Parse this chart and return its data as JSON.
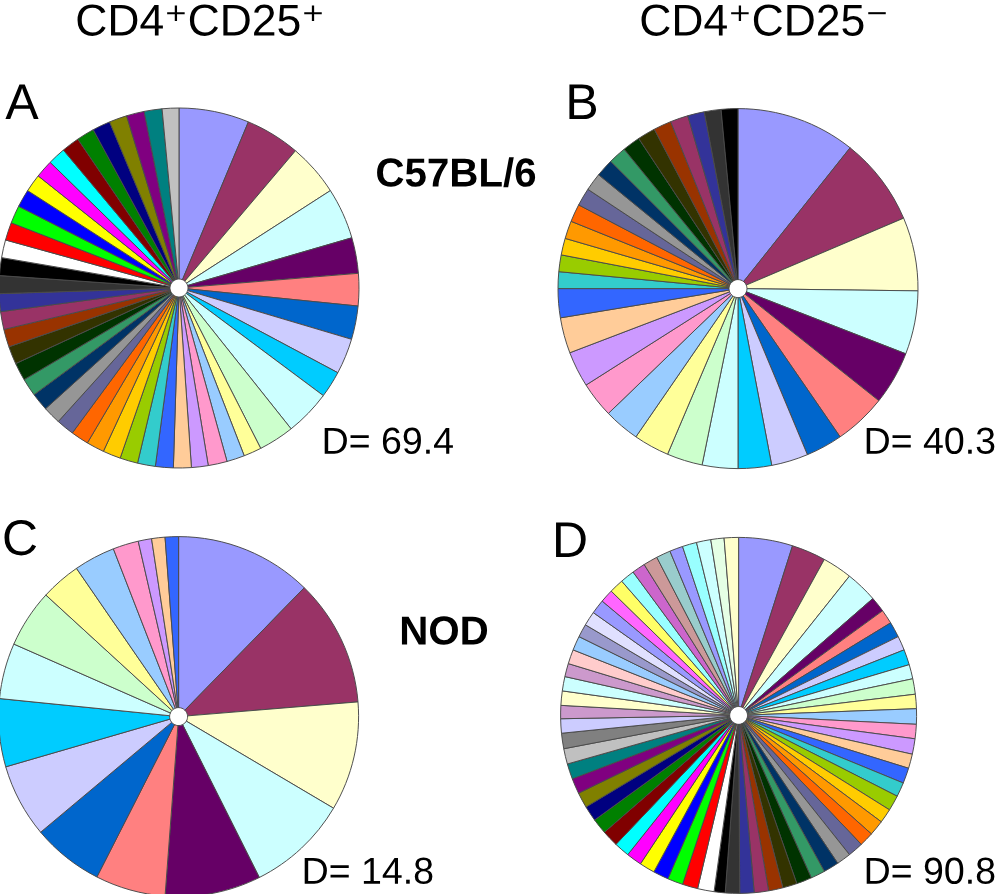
{
  "chart_data": [
    {
      "type": "pie",
      "title": "CD4⁺CD25⁺",
      "annotations": [
        "A",
        "C57BL/6",
        "D= 69.4"
      ],
      "categories": [
        null,
        null,
        null,
        null,
        null,
        null,
        null,
        null,
        null,
        null,
        null,
        null,
        null,
        null,
        null,
        null,
        null,
        null,
        null,
        null,
        null,
        null,
        null,
        null,
        null,
        null,
        null,
        null,
        null,
        null,
        null,
        null,
        null,
        null,
        null,
        null,
        null,
        null,
        null,
        null,
        null,
        null,
        null,
        null,
        null,
        null,
        null
      ],
      "values": [
        6.3,
        4.9,
        4.7,
        4.6,
        3.2,
        2.9,
        3.0,
        3.2,
        2.4,
        4.1,
        3.2,
        1.6,
        1.6,
        1.7,
        1.5,
        1.6,
        1.6,
        1.6,
        1.6,
        1.6,
        1.6,
        1.6,
        1.6,
        1.6,
        1.6,
        1.6,
        1.6,
        1.6,
        1.6,
        1.6,
        1.6,
        1.6,
        1.6,
        1.6,
        1.6,
        1.6,
        1.6,
        1.6,
        1.6,
        1.6,
        1.6,
        1.6,
        1.6,
        1.6,
        1.6,
        1.6,
        1.5
      ],
      "colors": [
        "#9999ff",
        "#993366",
        "#ffffcc",
        "#ccffff",
        "#660066",
        "#ff8080",
        "#0066cc",
        "#ccccff",
        "#00ccff",
        "#ccffff",
        "#ccffcc",
        "#ffff99",
        "#99ccff",
        "#ff99cc",
        "#cc99ff",
        "#ffcc99",
        "#3366ff",
        "#33cccc",
        "#99cc00",
        "#ffcc00",
        "#ff9900",
        "#ff6600",
        "#666699",
        "#969696",
        "#003366",
        "#339966",
        "#003300",
        "#333300",
        "#993300",
        "#993366",
        "#333399",
        "#333333",
        "#000000",
        "#ffffff",
        "#ff0000",
        "#00ff00",
        "#0000ff",
        "#ffff00",
        "#ff00ff",
        "#00ffff",
        "#800000",
        "#008000",
        "#000080",
        "#808000",
        "#800080",
        "#008080",
        "#c0c0c0"
      ]
    },
    {
      "type": "pie",
      "title": "CD4⁺CD25⁻",
      "annotations": [
        "B",
        "D= 40.3"
      ],
      "categories": [
        null,
        null,
        null,
        null,
        null,
        null,
        null,
        null,
        null,
        null,
        null,
        null,
        null,
        null,
        null,
        null,
        null,
        null,
        null,
        null,
        null,
        null,
        null,
        null,
        null,
        null,
        null,
        null,
        null,
        null,
        null,
        null,
        null
      ],
      "values": [
        10.7,
        7.9,
        6.6,
        5.7,
        4.8,
        4.7,
        3.3,
        3.3,
        3.0,
        3.2,
        3.2,
        3.2,
        3.2,
        3.2,
        3.2,
        3.2,
        2.6,
        1.5,
        1.5,
        1.5,
        1.6,
        1.6,
        1.6,
        1.6,
        1.6,
        1.6,
        1.6,
        1.6,
        1.6,
        1.6,
        1.5,
        1.5,
        1.5
      ],
      "colors": [
        "#9999ff",
        "#993366",
        "#ffffcc",
        "#ccffff",
        "#660066",
        "#ff8080",
        "#0066cc",
        "#ccccff",
        "#00ccff",
        "#ccffff",
        "#ccffcc",
        "#ffff99",
        "#99ccff",
        "#ff99cc",
        "#cc99ff",
        "#ffcc99",
        "#3366ff",
        "#33cccc",
        "#99cc00",
        "#ffcc00",
        "#ff9900",
        "#ff6600",
        "#666699",
        "#969696",
        "#003366",
        "#339966",
        "#003300",
        "#333300",
        "#993300",
        "#993366",
        "#333399",
        "#333333",
        "#000000"
      ]
    },
    {
      "type": "pie",
      "annotations": [
        "C",
        "NOD",
        "D= 14.8"
      ],
      "categories": [
        null,
        null,
        null,
        null,
        null,
        null,
        null,
        null,
        null,
        null,
        null,
        null,
        null,
        null,
        null,
        null,
        null
      ],
      "values": [
        12.3,
        11.4,
        9.8,
        9.1,
        8.6,
        6.3,
        6.4,
        6.6,
        6.1,
        5.0,
        5.2,
        3.6,
        3.7,
        2.3,
        1.2,
        1.2,
        1.2
      ],
      "colors": [
        "#9999ff",
        "#993366",
        "#ffffcc",
        "#ccffff",
        "#660066",
        "#ff8080",
        "#0066cc",
        "#ccccff",
        "#00ccff",
        "#ccffff",
        "#ccffcc",
        "#ffff99",
        "#99ccff",
        "#ff99cc",
        "#cc99ff",
        "#ffcc99",
        "#3366ff"
      ]
    },
    {
      "type": "pie",
      "annotations": [
        "D",
        "D= 90.8"
      ],
      "categories": [
        null,
        null,
        null,
        null,
        null,
        null,
        null,
        null,
        null,
        null,
        null,
        null,
        null,
        null,
        null,
        null,
        null,
        null,
        null,
        null,
        null,
        null,
        null,
        null,
        null,
        null,
        null,
        null,
        null,
        null,
        null,
        null,
        null,
        null,
        null,
        null,
        null,
        null,
        null,
        null,
        null,
        null,
        null,
        null,
        null,
        null,
        null,
        null,
        null,
        null,
        null,
        null,
        null,
        null,
        null,
        null,
        null,
        null,
        null,
        null,
        null,
        null,
        null,
        null,
        null,
        null,
        null,
        null,
        null
      ],
      "values": [
        4.9,
        3.1,
        2.7,
        2.9,
        1.4,
        1.3,
        1.4,
        1.3,
        1.4,
        1.3,
        1.4,
        1.3,
        1.4,
        1.3,
        1.4,
        1.3,
        1.4,
        1.3,
        1.4,
        1.3,
        1.4,
        1.3,
        1.4,
        1.3,
        1.4,
        1.3,
        1.4,
        1.3,
        1.3,
        1.3,
        1.3,
        1.3,
        1.0,
        1.5,
        1.4,
        1.4,
        1.4,
        1.4,
        1.4,
        1.4,
        1.5,
        1.4,
        1.4,
        1.4,
        1.4,
        1.4,
        1.4,
        1.4,
        1.3,
        1.2,
        1.3,
        1.3,
        1.2,
        1.3,
        1.3,
        1.2,
        1.3,
        1.3,
        1.2,
        1.3,
        1.3,
        1.2,
        1.3,
        1.3,
        1.2,
        1.3,
        1.3,
        1.2,
        1.3
      ],
      "colors": [
        "#9999ff",
        "#993366",
        "#ffffcc",
        "#ccffff",
        "#660066",
        "#ff8080",
        "#0066cc",
        "#ccccff",
        "#00ccff",
        "#ccffff",
        "#ccffcc",
        "#ffff99",
        "#99ccff",
        "#ff99cc",
        "#cc99ff",
        "#ffcc99",
        "#3366ff",
        "#33cccc",
        "#99cc00",
        "#ffcc00",
        "#ff9900",
        "#ff6600",
        "#666699",
        "#969696",
        "#003366",
        "#339966",
        "#003300",
        "#333300",
        "#993300",
        "#993366",
        "#333399",
        "#333333",
        "#000000",
        "#ffffff",
        "#ff0000",
        "#00ff00",
        "#0000ff",
        "#ffff00",
        "#ff00ff",
        "#00ffff",
        "#800000",
        "#008000",
        "#000080",
        "#808000",
        "#800080",
        "#008080",
        "#c0c0c0",
        "#808080",
        "#ccccff",
        "#cc99cc",
        "#ffffcc",
        "#ccffff",
        "#cc99cc",
        "#ffcccc",
        "#99ccff",
        "#9999cc",
        "#e0e0ff",
        "#9999ff",
        "#ff66ff",
        "#ffff66",
        "#99ffff",
        "#cc66cc",
        "#cc9999",
        "#99cccc",
        "#9999ff",
        "#99ffff",
        "#ccffff",
        "#e5ffe5",
        "#ffffcc"
      ]
    }
  ]
}
